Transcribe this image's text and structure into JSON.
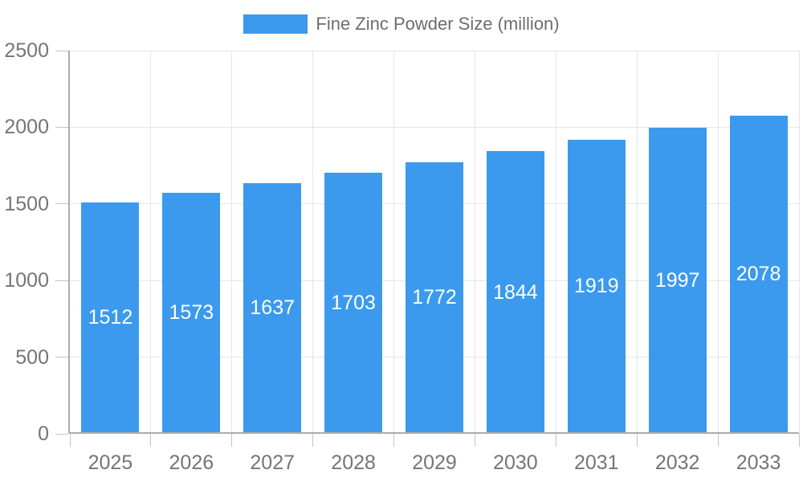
{
  "chart_data": {
    "type": "bar",
    "title": "Fine Zinc Powder Size (million)",
    "legend_entries": [
      "Fine Zinc Powder Size (million)"
    ],
    "legend_position": "top-center",
    "categories": [
      "2025",
      "2026",
      "2027",
      "2028",
      "2029",
      "2030",
      "2031",
      "2032",
      "2033"
    ],
    "values": [
      1512,
      1573,
      1637,
      1703,
      1772,
      1844,
      1919,
      1997,
      2078
    ],
    "xlabel": "",
    "ylabel": "",
    "ylim": [
      0,
      2500
    ],
    "yticks": [
      0,
      500,
      1000,
      1500,
      2000,
      2500
    ],
    "grid": true,
    "value_label_position": "inside-middle",
    "colors": {
      "bar": "#3B9AED",
      "value_text": "#FFFFFF",
      "axis_text": "#757575",
      "legend_text": "#6D6D6D",
      "grid_line": "#E6E6E6",
      "tick_line": "#C4C4C4",
      "axis_line": "#ACACAC",
      "background": "#FFFFFF"
    }
  }
}
